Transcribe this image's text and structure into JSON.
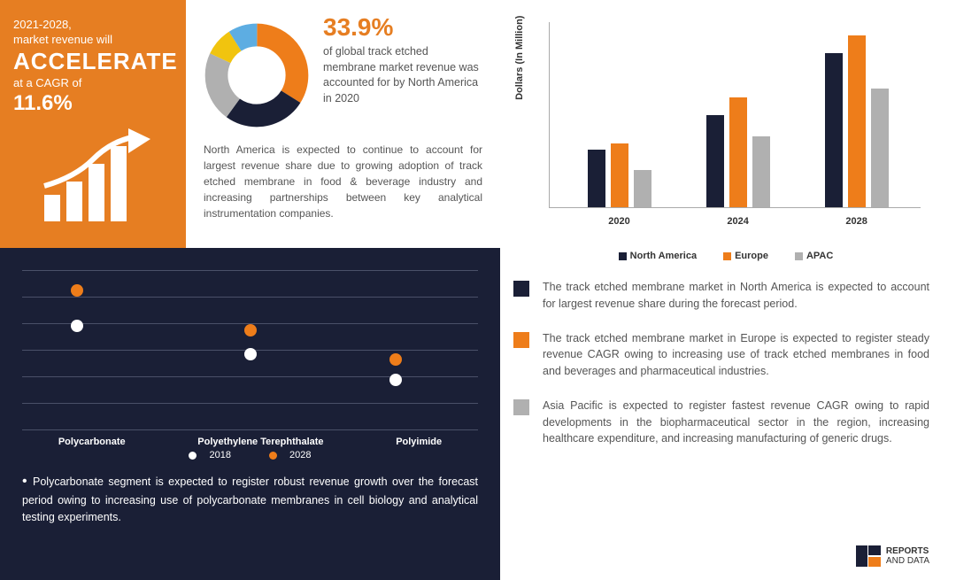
{
  "orange_box": {
    "years": "2021-2028,",
    "revenue_line": "market revenue will",
    "accelerate": "ACCELERATE",
    "cagr_line": "at a CAGR of",
    "cagr_value": "11.6%"
  },
  "donut": {
    "percentage": "33.9%",
    "description": "of global track etched membrane market revenue was accounted for by North America in 2020",
    "paragraph": "North America is expected to continue to account for largest revenue share due to growing adoption of track etched membrane in food & beverage industry and increasing partnerships between key analytical instrumentation companies.",
    "slices": [
      {
        "color": "#ee7d1a",
        "value": 33.9
      },
      {
        "color": "#1a1f36",
        "value": 26
      },
      {
        "color": "#b0b0b0",
        "value": 22
      },
      {
        "color": "#f1c40f",
        "value": 9
      },
      {
        "color": "#5dade2",
        "value": 9.1
      }
    ]
  },
  "dot_chart": {
    "categories": [
      "Polycarbonate",
      "Polyethylene Terephthalate",
      "Polyimide"
    ],
    "series": [
      {
        "year": "2018",
        "color": "#ffffff",
        "values": [
          5.2,
          3.8,
          2.5
        ]
      },
      {
        "year": "2028",
        "color": "#ee7d1a",
        "values": [
          7,
          5,
          3.5
        ]
      }
    ],
    "ylim": [
      0,
      8
    ],
    "line_count": 7,
    "legend_label_2018": "2018",
    "legend_label_2028": "2028",
    "paragraph": "Polycarbonate segment is expected to register robust revenue growth over the forecast period owing to increasing use of polycarbonate membranes in cell biology and analytical testing experiments."
  },
  "bar_chart": {
    "ylabel": "Dollars (In Million)",
    "categories": [
      "2020",
      "2024",
      "2028"
    ],
    "series": [
      {
        "name": "North America",
        "color": "#1a1f36",
        "values": [
          65,
          105,
          175
        ]
      },
      {
        "name": "Europe",
        "color": "#ee7d1a",
        "values": [
          72,
          125,
          195
        ]
      },
      {
        "name": "APAC",
        "color": "#b0b0b0",
        "values": [
          42,
          80,
          135
        ]
      }
    ],
    "ylim": [
      0,
      210
    ]
  },
  "bullets": [
    {
      "color": "#1a1f36",
      "text": "The track etched membrane market in North America is expected to account for largest revenue share during the forecast period."
    },
    {
      "color": "#ee7d1a",
      "text": "The track etched membrane market in Europe is expected to register steady revenue CAGR owing to increasing use of track etched membranes in food and beverages and pharmaceutical industries."
    },
    {
      "color": "#b0b0b0",
      "text": "Asia Pacific is expected to register fastest revenue CAGR owing to rapid developments in the biopharmaceutical sector in the region, increasing healthcare expenditure, and increasing manufacturing of generic drugs."
    }
  ],
  "logo": {
    "line1": "REPORTS",
    "line2": "AND DATA"
  }
}
